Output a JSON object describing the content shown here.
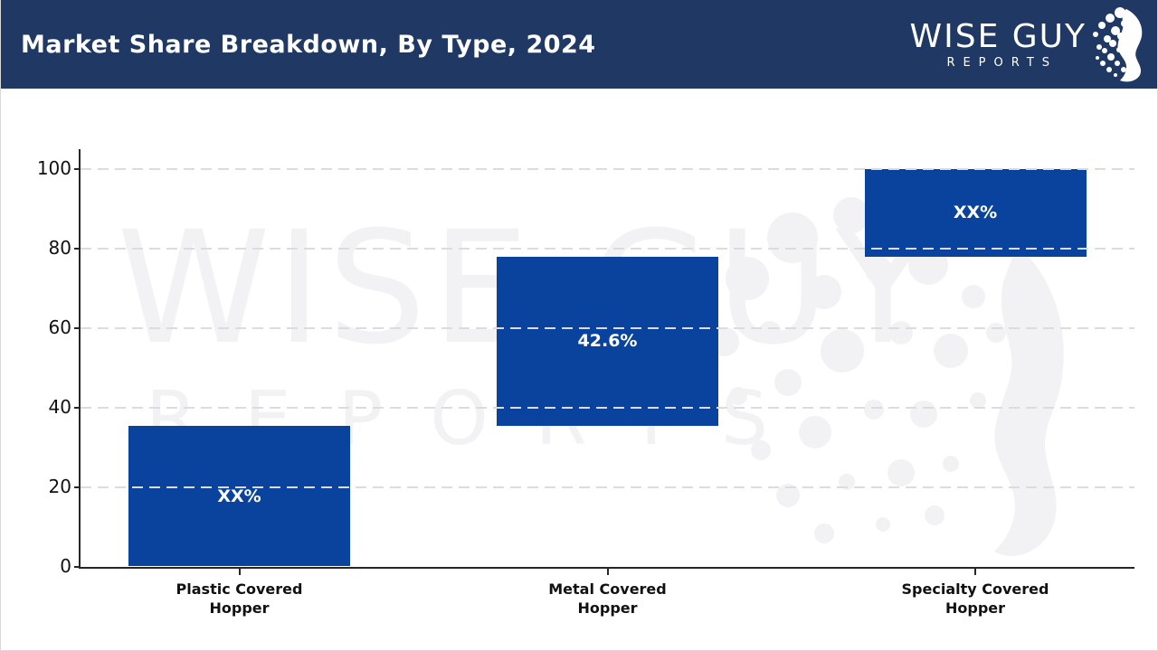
{
  "header": {
    "bg_color": "#1F3864",
    "title": "Market Share Breakdown, By Type, 2024",
    "logo": {
      "line1": "WISE GUY",
      "line2": "REPORTS"
    }
  },
  "watermark": {
    "line1": "WISE GUY",
    "line2": "REPORTS"
  },
  "chart_data": {
    "type": "bar",
    "subtype": "floating-waterfall-percent",
    "title": "Market Share Breakdown, By Type, 2024",
    "categories": [
      "Plastic Covered Hopper",
      "Metal Covered Hopper",
      "Specialty Covered Hopper"
    ],
    "category_label_lines": [
      [
        "Plastic Covered",
        "Hopper"
      ],
      [
        "Metal Covered",
        "Hopper"
      ],
      [
        "Specialty Covered",
        "Hopper"
      ]
    ],
    "bars": [
      {
        "category": "Plastic Covered Hopper",
        "base": 0,
        "top": 35.4,
        "height": 35.4,
        "label": "XX%"
      },
      {
        "category": "Metal Covered Hopper",
        "base": 35.4,
        "top": 78.0,
        "height": 42.6,
        "label": "42.6%"
      },
      {
        "category": "Specialty Covered Hopper",
        "base": 78.0,
        "top": 100,
        "height": 22.0,
        "label": "XX%"
      }
    ],
    "bar_color": "#09439D",
    "bar_label_color": "#ffffff",
    "yticks": [
      0,
      20,
      40,
      60,
      80,
      100
    ],
    "ylim": [
      0,
      105
    ],
    "xlabel": "",
    "ylabel": "",
    "grid": "horizontal dashed, drawn over bars",
    "gridline_color": "#dcdcdc",
    "axis_color": "#262626",
    "legend": "none"
  }
}
